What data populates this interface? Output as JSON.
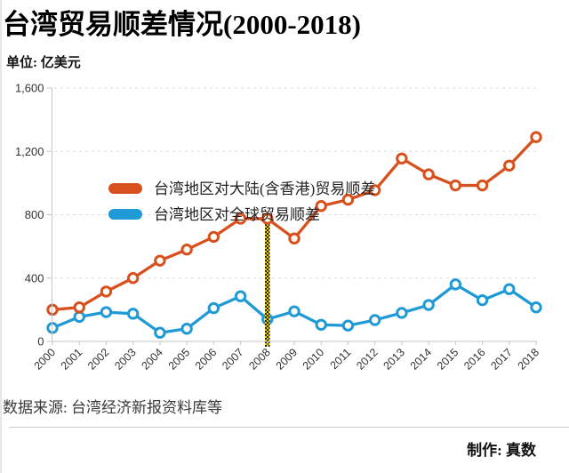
{
  "page": {
    "title": "台湾贸易顺差情况(2000-2018)",
    "unit_label": "单位: 亿美元",
    "source_label": "数据来源: 台湾经济新报资料库等",
    "credit_label": "制作: 真数"
  },
  "colors": {
    "mainland_series": "#d8501e",
    "global_series": "#1f9ad6",
    "marker_fill": "#fffdf5",
    "grid_line": "#dcdcdc",
    "axis_line": "#c6c6c6",
    "tick_text": "#333333",
    "highlight_yellow": "#ecca00",
    "highlight_black": "#222222",
    "divider": "#cccccc"
  },
  "chart_data": {
    "type": "line",
    "title": "台湾贸易顺差情况(2000-2018)",
    "unit": "亿美元",
    "x": [
      2000,
      2001,
      2002,
      2003,
      2004,
      2005,
      2006,
      2007,
      2008,
      2009,
      2010,
      2011,
      2012,
      2013,
      2014,
      2015,
      2016,
      2017,
      2018
    ],
    "series": [
      {
        "name": "台湾地区对大陆(含香港)贸易顺差",
        "color": "mainland_series",
        "values": [
          200,
          215,
          315,
          400,
          510,
          580,
          660,
          775,
          775,
          650,
          855,
          895,
          955,
          1155,
          1055,
          985,
          985,
          1110,
          1290
        ]
      },
      {
        "name": "台湾地区对全球贸易顺差",
        "color": "global_series",
        "values": [
          85,
          155,
          185,
          175,
          55,
          80,
          210,
          285,
          140,
          190,
          105,
          100,
          135,
          180,
          230,
          360,
          260,
          330,
          215
        ]
      }
    ],
    "xlabel": "",
    "ylabel": "亿美元",
    "ylim": [
      0,
      1600
    ],
    "yticks": [
      0,
      400,
      800,
      1200,
      1600
    ],
    "ytick_labels": [
      "0",
      "400",
      "800",
      "1,200",
      "1,600"
    ],
    "grid": true,
    "legend_position": "top-left-inside",
    "annotation": {
      "type": "vertical-highlight-band",
      "x": 2008,
      "from_value": 775,
      "style": "yellow-black-checker"
    }
  }
}
